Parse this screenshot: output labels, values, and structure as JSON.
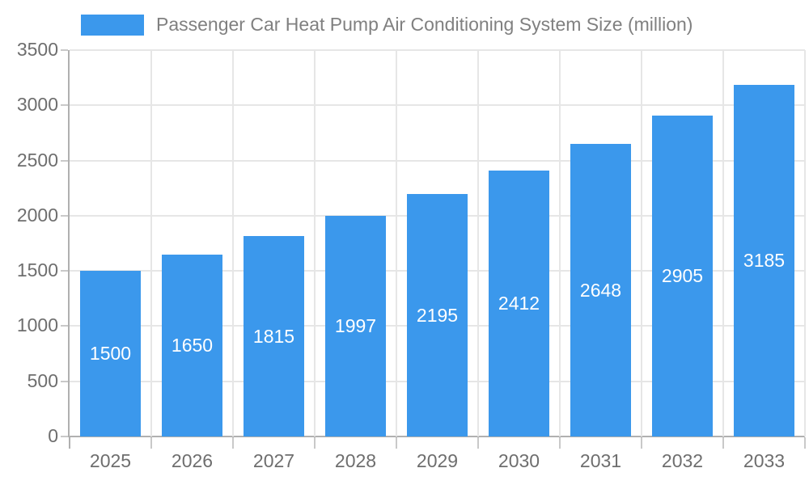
{
  "chart_data": {
    "type": "bar",
    "title": "Passenger Car Heat Pump Air Conditioning System Size (million)",
    "categories": [
      "2025",
      "2026",
      "2027",
      "2028",
      "2029",
      "2030",
      "2031",
      "2032",
      "2033"
    ],
    "values": [
      1500,
      1650,
      1815,
      1997,
      2195,
      2412,
      2648,
      2905,
      3185
    ],
    "series_name": "Passenger Car Heat Pump Air Conditioning System Size (million)",
    "xlabel": "",
    "ylabel": "",
    "ylim": [
      0,
      3500
    ],
    "y_ticks": [
      0,
      500,
      1000,
      1500,
      2000,
      2500,
      3000,
      3500
    ],
    "grid": true,
    "legend_position": "top-center",
    "value_label_position": "inside-center",
    "colors": {
      "bar": "#3b98ec",
      "value_label": "#ffffff",
      "legend_text": "#808080",
      "axis_text": "#6e6e6e",
      "grid_line": "#e6e6e6",
      "axis_line": "#b0b0b0",
      "background": "#ffffff"
    }
  }
}
